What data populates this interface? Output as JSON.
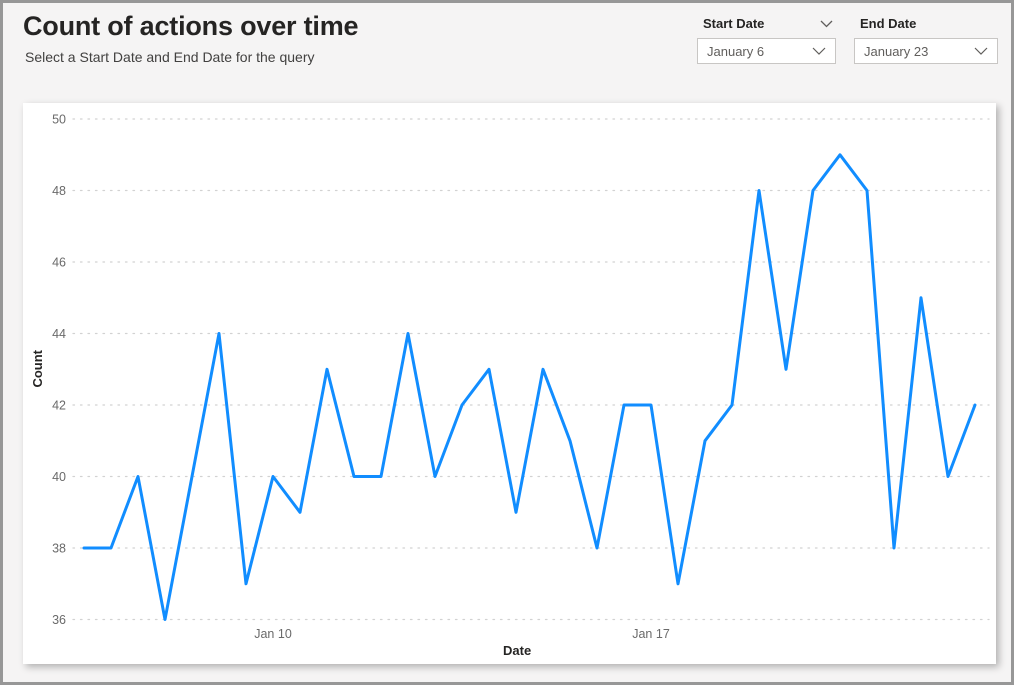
{
  "header": {
    "title": "Count of actions over time",
    "subtitle": "Select a Start Date and End Date for the query"
  },
  "slicers": {
    "start": {
      "label": "Start Date",
      "value": "January 6"
    },
    "end": {
      "label": "End Date",
      "value": "January 23"
    }
  },
  "chart_data": {
    "type": "line",
    "title": "Count of actions over time",
    "xlabel": "Date",
    "ylabel": "Count",
    "ylim": [
      36,
      50
    ],
    "y_ticks": [
      36,
      38,
      40,
      42,
      44,
      46,
      48,
      50
    ],
    "x_tick_labels": [
      {
        "label": "Jan 10",
        "index": 7
      },
      {
        "label": "Jan 17",
        "index": 21
      }
    ],
    "grid": "dotted-horizontal",
    "legend": "none",
    "line_color": "#118DFF",
    "values": [
      38,
      38,
      40,
      36,
      40,
      44,
      37,
      40,
      39,
      43,
      40,
      40,
      44,
      40,
      42,
      43,
      39,
      43,
      41,
      38,
      42,
      42,
      37,
      41,
      42,
      48,
      43,
      48,
      49,
      48,
      38,
      45,
      40,
      42
    ]
  },
  "colors": {
    "accent_line": "#118DFF",
    "title_text": "#252423",
    "muted_text": "#6a6a6a",
    "gridline": "#d2d2d2",
    "card_bg": "#ffffff",
    "page_bg": "#f5f4f4",
    "frame_border": "#979797",
    "slicer_border": "#c8c6c4"
  }
}
